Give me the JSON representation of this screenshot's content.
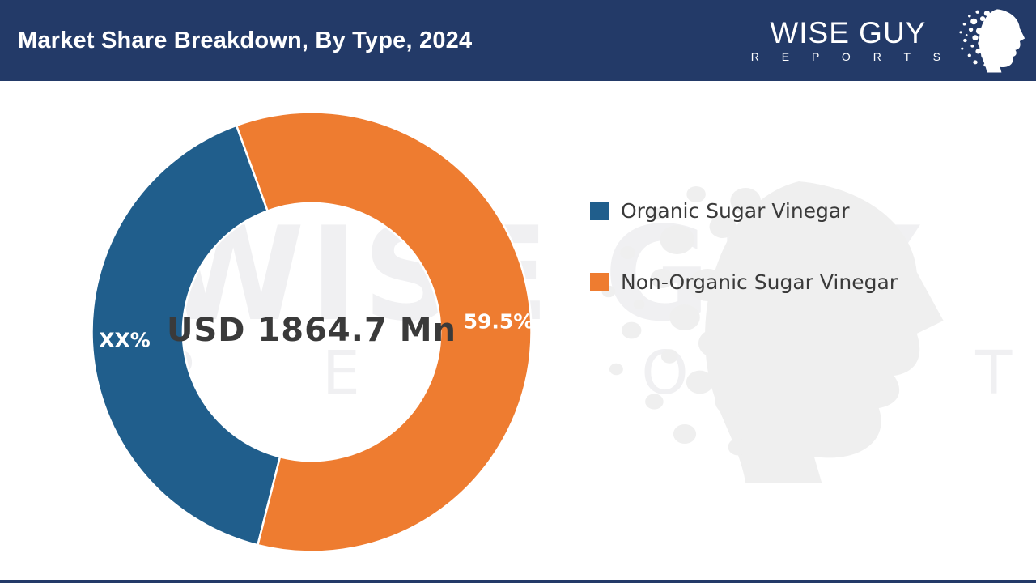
{
  "header": {
    "title": "Market Share Breakdown, By Type, 2024",
    "background": "#233A68",
    "logo": {
      "line1": "WISE GUY",
      "line2": "R E P O R T S",
      "face_icon": "wise-guy-face-icon"
    }
  },
  "chart_data": {
    "type": "pie",
    "subtype": "donut",
    "title": "Market Share Breakdown, By Type, 2024",
    "center_label": "USD 1864.7 Mn",
    "center_label_color": "#3A3A3A",
    "series": [
      {
        "name": "Organic Sugar Vinegar",
        "value": 40.5,
        "display_label": "XX%",
        "color": "#205E8C"
      },
      {
        "name": "Non-Organic Sugar Vinegar",
        "value": 59.5,
        "display_label": "59.5%",
        "color": "#EE7C30"
      }
    ],
    "start_angle_deg": 194.2,
    "donut_hole_ratio": 0.586,
    "slice_label_color": "#FFFFFF",
    "slice_edge_color": "#FFFFFF",
    "legend_position": "right",
    "grid": false
  },
  "watermark": {
    "line1": "WISE GUY",
    "line2": "R E P O R T S",
    "color": "#F0F0F2",
    "face_color": "#EFEFEF"
  },
  "footer": {
    "background": "#233A68"
  }
}
